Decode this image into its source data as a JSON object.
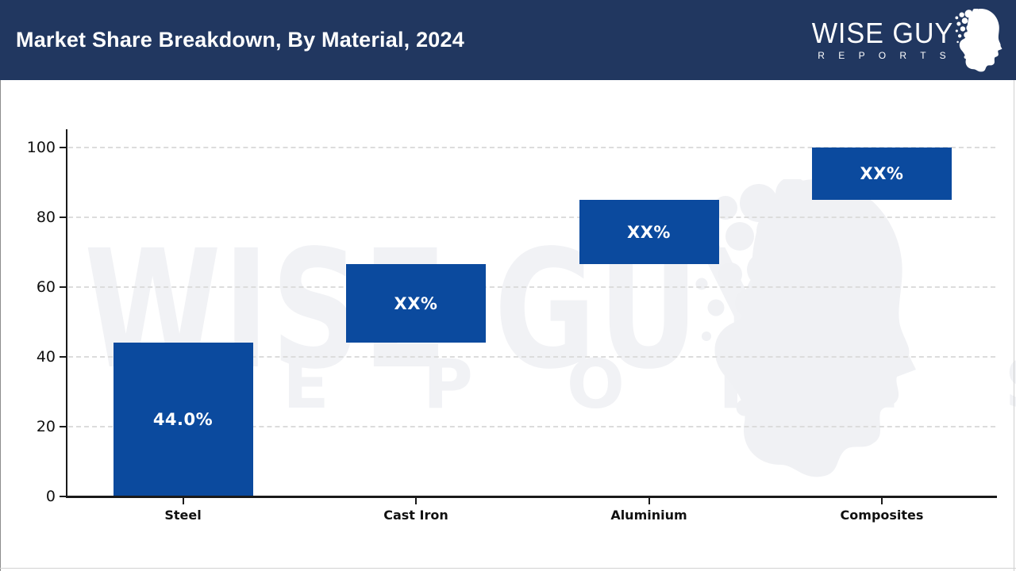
{
  "header": {
    "title": "Market Share Breakdown, By Material, 2024"
  },
  "logo": {
    "line1": "WISE GUY",
    "line2": "R E P O R T S"
  },
  "watermark": {
    "line1": "WISE GUY",
    "line2": "R E P O R T S"
  },
  "chart_data": {
    "type": "bar",
    "subtype": "waterfall",
    "title": "Market Share Breakdown, By Material, 2024",
    "categories": [
      "Steel",
      "Cast Iron",
      "Aluminium",
      "Composites"
    ],
    "segments": [
      {
        "category": "Steel",
        "label": "44.0%",
        "start": 0,
        "end": 44.0,
        "value": 44.0
      },
      {
        "category": "Cast Iron",
        "label": "XX%",
        "start": 44.0,
        "end": 66.5,
        "value": 22.5
      },
      {
        "category": "Aluminium",
        "label": "XX%",
        "start": 66.5,
        "end": 85.0,
        "value": 18.5
      },
      {
        "category": "Composites",
        "label": "XX%",
        "start": 85.0,
        "end": 100.0,
        "value": 15.0
      }
    ],
    "xlabel": "",
    "ylabel": "",
    "ylim": [
      0,
      100
    ],
    "yticks": [
      0,
      20,
      40,
      60,
      80,
      100
    ],
    "grid": "horizontal-dashed",
    "legend": null,
    "bar_color": "#0b4a9e",
    "bar_label_color": "#ffffff"
  },
  "colors": {
    "header_bg": "#213760",
    "bar": "#0b4a9e",
    "watermark": "#f1f2f5",
    "grid": "#dcdcdc",
    "axis": "#1a1a1a"
  }
}
